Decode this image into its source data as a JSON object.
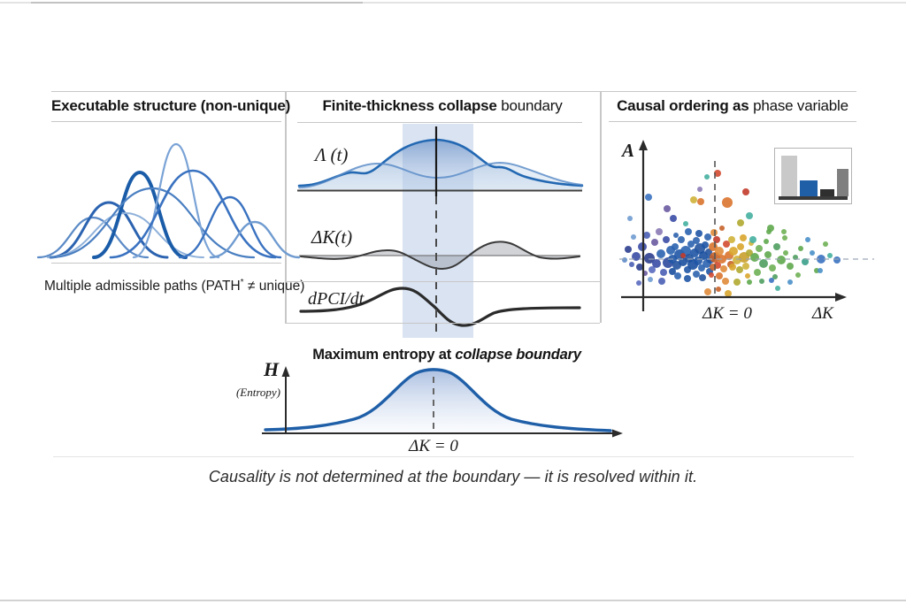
{
  "colors": {
    "accent_blue": "#1f5fa8",
    "curve_blue": "#2268b2",
    "band_blue": "#ccd9ee",
    "dark": "#2b2b2b",
    "rule_gray": "#c7c7c7",
    "text_dark": "#1b1b1b"
  },
  "panels": {
    "left": {
      "title": "Executable structure (non-unique)",
      "caption_pre": "Multiple admissible paths (PATH",
      "caption_sup": "*",
      "caption_post": " ≠ unique)",
      "curves": [
        [
          105,
          62,
          45,
          "#5b8ac6",
          2.2
        ],
        [
          123,
          66,
          62,
          "#2b63b0",
          3
        ],
        [
          142,
          88,
          50,
          "#8fb1da",
          2
        ],
        [
          158,
          52,
          96,
          "#1a5ca8",
          4
        ],
        [
          172,
          115,
          78,
          "#4a7fc1",
          2.2
        ],
        [
          199,
          48,
          128,
          "#7aa3d6",
          2.2
        ],
        [
          218,
          93,
          98,
          "#3a72c0",
          2.6
        ],
        [
          260,
          57,
          68,
          "#3a72c0",
          2.4
        ],
        [
          288,
          50,
          40,
          "#6f9bd0",
          2.4
        ]
      ]
    },
    "middle": {
      "title_bold": "Finite-thickness collapse",
      "title_regular": " boundary",
      "labels": {
        "lambda": "Λ (t)",
        "deltaK": "ΔK(t)",
        "dpci": "dPCI/dt"
      }
    },
    "right": {
      "title_bold": "Causal ordering as",
      "title_regular": " phase variable",
      "y_axis_label": "A",
      "x_axis_label": "ΔK",
      "zero_label": "ΔK = 0",
      "inset_chart": {
        "type": "bar",
        "values": [
          95,
          38,
          17,
          65
        ],
        "widths": [
          18,
          20,
          16,
          13
        ],
        "colors": [
          "#c9c9c9",
          "#1f5fa8",
          "#2f2f2f",
          "#7f7f7f"
        ]
      },
      "scatter": {
        "type": "scatter",
        "points": [
          [
            706,
            294,
            3,
            "#5f8cc8"
          ],
          [
            710,
            282,
            4,
            "#2e3f8f"
          ],
          [
            714,
            299,
            3,
            "#4a5fb5"
          ],
          [
            716,
            268,
            3,
            "#6f9bd0"
          ],
          [
            719,
            290,
            5,
            "#3b4da5"
          ],
          [
            723,
            302,
            4,
            "#2e3f8f"
          ],
          [
            726,
            279,
            5,
            "#3b4da5"
          ],
          [
            729,
            309,
            3,
            "#6a5aa0"
          ],
          [
            731,
            266,
            4,
            "#4a5fb5"
          ],
          [
            734,
            292,
            6,
            "#2e3f8f"
          ],
          [
            737,
            305,
            4,
            "#5a6abf"
          ],
          [
            740,
            274,
            4,
            "#6a5aa0"
          ],
          [
            742,
            298,
            5,
            "#3b4da5"
          ],
          [
            745,
            262,
            4,
            "#8a7ab5"
          ],
          [
            747,
            287,
            5,
            "#2b63b0"
          ],
          [
            750,
            308,
            4,
            "#4a5fb5"
          ],
          [
            753,
            271,
            4,
            "#3b4da5"
          ],
          [
            755,
            297,
            6,
            "#2e4a9e"
          ],
          [
            748,
            318,
            4,
            "#4a5fb5"
          ],
          [
            735,
            316,
            3,
            "#6f9bd0"
          ],
          [
            722,
            320,
            3,
            "#5a6abf"
          ],
          [
            758,
            283,
            5,
            "#2b63b0"
          ],
          [
            760,
            293,
            5,
            "#1f55a5"
          ],
          [
            763,
            279,
            4,
            "#2b63b0"
          ],
          [
            765,
            300,
            5,
            "#24549f"
          ],
          [
            768,
            288,
            6,
            "#1f55a5"
          ],
          [
            770,
            271,
            4,
            "#2e63ae"
          ],
          [
            772,
            296,
            5,
            "#1a4f9e"
          ],
          [
            775,
            284,
            6,
            "#2b63b0"
          ],
          [
            777,
            305,
            4,
            "#1f55a5"
          ],
          [
            779,
            292,
            5,
            "#24549f"
          ],
          [
            781,
            276,
            4,
            "#2b63b0"
          ],
          [
            783,
            299,
            6,
            "#1a4f9e"
          ],
          [
            785,
            286,
            5,
            "#1f55a5"
          ],
          [
            787,
            272,
            4,
            "#2e63ae"
          ],
          [
            789,
            295,
            5,
            "#1f55a5"
          ],
          [
            791,
            281,
            6,
            "#24549f"
          ],
          [
            793,
            303,
            4,
            "#2b63b0"
          ],
          [
            795,
            289,
            5,
            "#1a4f9e"
          ],
          [
            797,
            277,
            4,
            "#1f55a5"
          ],
          [
            799,
            298,
            5,
            "#2b63b0"
          ],
          [
            801,
            285,
            4,
            "#24549f"
          ],
          [
            803,
            293,
            5,
            "#1f55a5"
          ],
          [
            787,
            310,
            4,
            "#2e63ae"
          ],
          [
            777,
            315,
            4,
            "#1f55a5"
          ],
          [
            766,
            312,
            4,
            "#2b63b0"
          ],
          [
            794,
            314,
            4,
            "#24549f"
          ],
          [
            760,
            307,
            4,
            "#1a4f9e"
          ],
          [
            772,
            289,
            3,
            "#c23b2a"
          ],
          [
            764,
            266,
            3,
            "#2e63ae"
          ],
          [
            778,
            262,
            4,
            "#2b63b0"
          ],
          [
            790,
            264,
            4,
            "#1f55a5"
          ],
          [
            800,
            268,
            4,
            "#2e63ae"
          ],
          [
            802,
            307,
            4,
            "#1f55a5"
          ],
          [
            733,
            223,
            4,
            "#3a72c0"
          ],
          [
            754,
            236,
            4,
            "#6a5aa0"
          ],
          [
            761,
            247,
            4,
            "#3b4da5"
          ],
          [
            775,
            253,
            3,
            "#45b0a0"
          ],
          [
            784,
            226,
            4,
            "#cfb23a"
          ],
          [
            792,
            228,
            4,
            "#d9742e"
          ],
          [
            791,
            214,
            3,
            "#8a7ab5"
          ],
          [
            799,
            200,
            3,
            "#45b0a0"
          ],
          [
            811,
            196,
            4,
            "#d24a30"
          ],
          [
            822,
            229,
            6,
            "#d9742e"
          ],
          [
            843,
            217,
            4,
            "#c23b2a"
          ],
          [
            837,
            252,
            4,
            "#b0a830"
          ],
          [
            847,
            244,
            4,
            "#45b0a0"
          ],
          [
            871,
            258,
            4,
            "#5fa84e"
          ],
          [
            886,
            262,
            3,
            "#6fb055"
          ],
          [
            712,
            247,
            3,
            "#6f9bd0"
          ],
          [
            806,
            279,
            5,
            "#d9742e"
          ],
          [
            808,
            291,
            6,
            "#c8622a"
          ],
          [
            811,
            300,
            4,
            "#d24a30"
          ],
          [
            813,
            284,
            5,
            "#e08b3a"
          ],
          [
            816,
            293,
            5,
            "#d9742e"
          ],
          [
            810,
            271,
            4,
            "#c23b2a"
          ],
          [
            818,
            304,
            4,
            "#e08b3a"
          ],
          [
            806,
            302,
            4,
            "#c8622a"
          ],
          [
            813,
            312,
            4,
            "#d9742e"
          ],
          [
            821,
            276,
            4,
            "#d24a30"
          ],
          [
            807,
            263,
            4,
            "#e08b3a"
          ],
          [
            824,
            289,
            5,
            "#d9742e"
          ],
          [
            816,
            258,
            3,
            "#c8622a"
          ],
          [
            820,
            318,
            4,
            "#e08b3a"
          ],
          [
            804,
            311,
            3,
            "#d24a30"
          ],
          [
            826,
            299,
            4,
            "#c8622a"
          ],
          [
            800,
            330,
            4,
            "#e08b3a"
          ],
          [
            812,
            327,
            3,
            "#c8622a"
          ],
          [
            829,
            284,
            5,
            "#d9a62e"
          ],
          [
            833,
            294,
            5,
            "#cfb23a"
          ],
          [
            837,
            279,
            4,
            "#d9a62e"
          ],
          [
            841,
            291,
            6,
            "#c9a02e"
          ],
          [
            836,
            305,
            4,
            "#b0a830"
          ],
          [
            828,
            302,
            4,
            "#d9a62e"
          ],
          [
            843,
            301,
            4,
            "#cfb23a"
          ],
          [
            847,
            286,
            4,
            "#b0a830"
          ],
          [
            840,
            269,
            4,
            "#d9a62e"
          ],
          [
            827,
            271,
            4,
            "#cfb23a"
          ],
          [
            845,
            312,
            3,
            "#d9a62e"
          ],
          [
            833,
            319,
            4,
            "#b0a830"
          ],
          [
            823,
            332,
            4,
            "#d9a62e"
          ],
          [
            849,
            275,
            3,
            "#cfb23a"
          ],
          [
            853,
            291,
            5,
            "#5fa84e"
          ],
          [
            858,
            281,
            4,
            "#6fb055"
          ],
          [
            863,
            298,
            5,
            "#4f9e60"
          ],
          [
            868,
            288,
            4,
            "#5fa84e"
          ],
          [
            873,
            303,
            4,
            "#6fb055"
          ],
          [
            878,
            279,
            4,
            "#4f9e60"
          ],
          [
            883,
            294,
            5,
            "#5fa84e"
          ],
          [
            888,
            286,
            3,
            "#6fb055"
          ],
          [
            893,
            301,
            4,
            "#5fa84e"
          ],
          [
            899,
            291,
            3,
            "#4f9e60"
          ],
          [
            856,
            308,
            4,
            "#6fb055"
          ],
          [
            866,
            273,
            3,
            "#5fa84e"
          ],
          [
            876,
            313,
            3,
            "#4f9e60"
          ],
          [
            887,
            269,
            3,
            "#6fb055"
          ],
          [
            905,
            281,
            3,
            "#5fa84e"
          ],
          [
            851,
            271,
            4,
            "#45b0a0"
          ],
          [
            869,
            262,
            3,
            "#5fa84e"
          ],
          [
            861,
            318,
            3,
            "#4f9e60"
          ],
          [
            847,
            319,
            3,
            "#5fa84e"
          ],
          [
            872,
            317,
            3,
            "#3a72c0"
          ],
          [
            910,
            296,
            4,
            "#3aa08a"
          ],
          [
            918,
            286,
            3,
            "#4a90c8"
          ],
          [
            928,
            293,
            5,
            "#3a72c0"
          ],
          [
            938,
            289,
            3,
            "#45b0a0"
          ],
          [
            923,
            306,
            3,
            "#5fa84e"
          ],
          [
            913,
            271,
            3,
            "#4a90c8"
          ],
          [
            933,
            276,
            3,
            "#6fb055"
          ],
          [
            946,
            294,
            4,
            "#3a72c0"
          ],
          [
            879,
            326,
            3,
            "#45b0a0"
          ],
          [
            893,
            319,
            3,
            "#4a90c8"
          ],
          [
            927,
            306,
            3,
            "#4a90c8"
          ],
          [
            902,
            311,
            3,
            "#6fb055"
          ]
        ]
      }
    }
  },
  "entropy_plot": {
    "title_regular": "Maximum entropy at ",
    "title_italic": "collapse boundary",
    "y_axis_label": "H",
    "y_axis_sub": "(Entropy)",
    "zero_label": "ΔK = 0"
  },
  "footer": {
    "caption": "Causality is not determined at the boundary — it is resolved within it."
  }
}
